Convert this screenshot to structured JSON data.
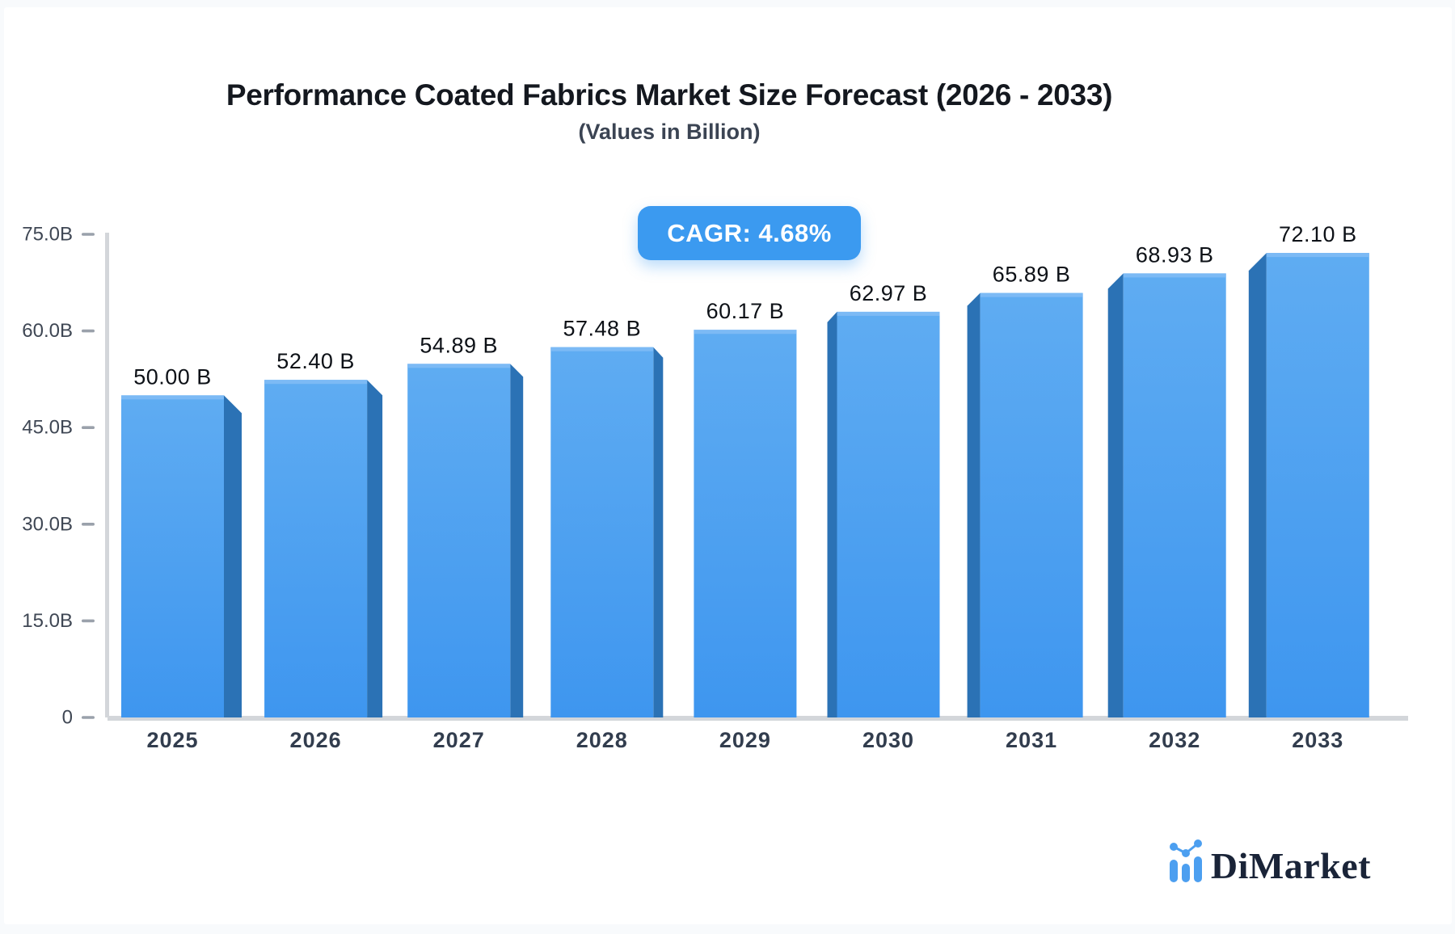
{
  "page": {
    "background": "#f8fafc",
    "card_background": "#ffffff"
  },
  "header": {
    "title": "Performance Coated Fabrics Market Size Forecast (2026 - 2033)",
    "subtitle": "(Values in Billion)"
  },
  "badge": {
    "label": "CAGR: 4.68%",
    "background": "#3b9af0",
    "text_color": "#ffffff"
  },
  "chart_data": {
    "type": "bar",
    "title": "Performance Coated Fabrics Market Size Forecast (2026 - 2033)",
    "subtitle": "(Values in Billion)",
    "categories": [
      "2025",
      "2026",
      "2027",
      "2028",
      "2029",
      "2030",
      "2031",
      "2032",
      "2033"
    ],
    "values": [
      50.0,
      52.4,
      54.89,
      57.48,
      60.17,
      62.97,
      65.89,
      68.93,
      72.1
    ],
    "value_labels": [
      "50.00 B",
      "52.40 B",
      "54.89 B",
      "57.48 B",
      "60.17 B",
      "62.97 B",
      "65.89 B",
      "68.93 B",
      "72.10 B"
    ],
    "xlabel": "",
    "ylabel": "",
    "ylim": [
      0,
      75
    ],
    "yticks": [
      {
        "value": 75,
        "label": "75.0B"
      },
      {
        "value": 60,
        "label": "60.0B"
      },
      {
        "value": 45,
        "label": "45.0B"
      },
      {
        "value": 30,
        "label": "30.0B"
      },
      {
        "value": 15,
        "label": "15.0B"
      },
      {
        "value": 0,
        "label": "0"
      }
    ],
    "grid": false,
    "legend": false,
    "style_3d": "center-perspective",
    "colors": {
      "bar_face_top": "#5FACF2",
      "bar_face_bottom": "#3E96EF",
      "bar_side": "#2B72B5",
      "bar_top_edge": "#7CBAF5",
      "axis_line": "#d3d6da",
      "tick_dash": "#9aa1ab",
      "ytick_label": "#3f4754",
      "year_label": "#323d4e",
      "value_label": "#0d1117"
    }
  },
  "footer": {
    "brand": "DiMarket",
    "brand_color": "#1a2438",
    "icon": "bar-chart-logo-icon",
    "icon_color": "#4C9FF0"
  }
}
